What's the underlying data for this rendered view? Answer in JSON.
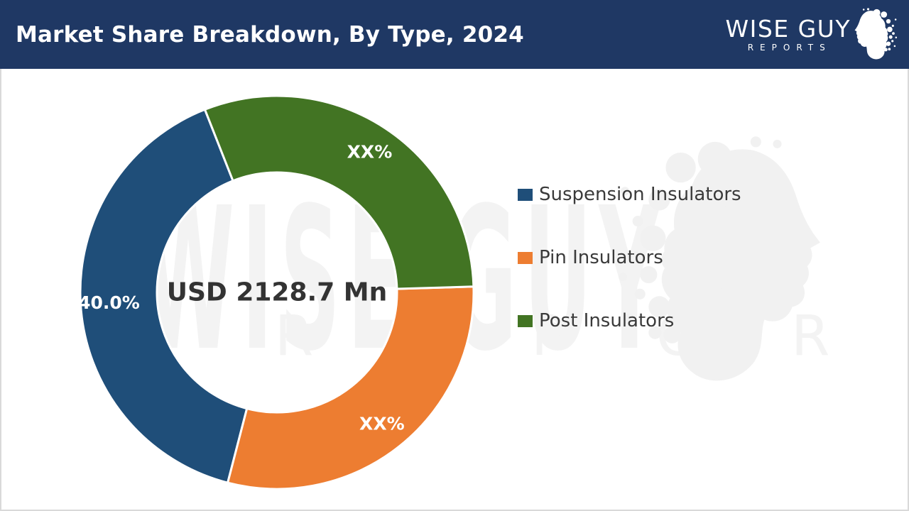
{
  "header": {
    "title": "Market Share Breakdown, By Type, 2024",
    "logo": {
      "name": "WISE GUY",
      "tagline": "REPORTS"
    }
  },
  "chart_data": {
    "type": "pie",
    "subtype": "donut",
    "title": "Market Share Breakdown, By Type, 2024",
    "center_label": "USD 2128.7 Mn",
    "legend_position": "right",
    "direction": "counterclockwise",
    "start_angle_deg": 111.5,
    "inner_radius_ratio": 0.61,
    "slices": [
      {
        "name": "Suspension Insulators",
        "value_pct": 40.0,
        "data_label": "40.0%",
        "color": "#1f4e79"
      },
      {
        "name": "Pin Insulators",
        "value_pct": 29.5,
        "data_label": "XX%",
        "color": "#ed7d31"
      },
      {
        "name": "Post Insulators",
        "value_pct": 30.5,
        "data_label": "XX%",
        "color": "#427423"
      }
    ]
  },
  "watermark": {
    "line1": "WISE GUY",
    "line2": "R E P O R T S"
  },
  "colors": {
    "header_bg": "#1f3864",
    "content_border": "#d9d9d9",
    "center_text": "#333333",
    "legend_text": "#3a3a3a",
    "slice_label": "#ffffff",
    "watermark_text": "#f3f3f3"
  }
}
